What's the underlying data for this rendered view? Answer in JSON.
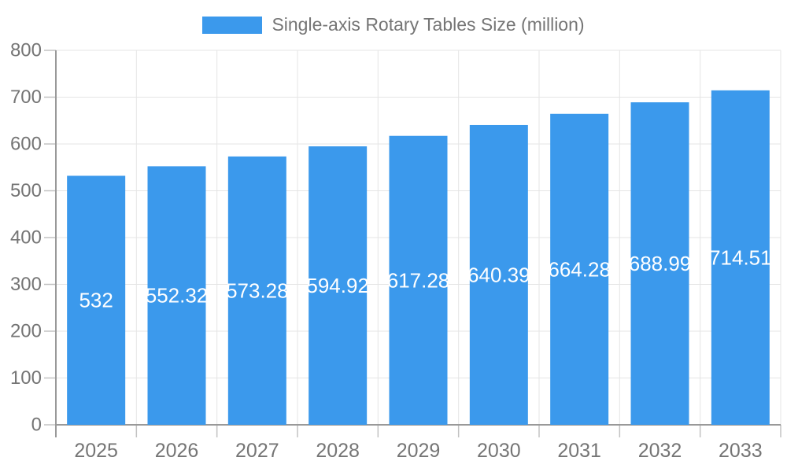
{
  "chart_data": {
    "type": "bar",
    "title": "Single-axis Rotary Tables Size (million)",
    "categories": [
      "2025",
      "2026",
      "2027",
      "2028",
      "2029",
      "2030",
      "2031",
      "2032",
      "2033"
    ],
    "series": [
      {
        "name": "Single-axis Rotary Tables Size (million)",
        "values": [
          532,
          552.32,
          573.28,
          594.92,
          617.28,
          640.39,
          664.28,
          688.99,
          714.51
        ],
        "labels": [
          "532",
          "552.32",
          "573.28",
          "594.92",
          "617.28",
          "640.39",
          "664.28",
          "688.99",
          "714.51"
        ],
        "color": "#3b99ec"
      }
    ],
    "xlabel": "",
    "ylabel": "",
    "ylim": [
      0,
      800
    ],
    "yticks": [
      0,
      100,
      200,
      300,
      400,
      500,
      600,
      700,
      800
    ],
    "grid": true,
    "legend_position": "top",
    "colors": {
      "bar": "#3b99ec",
      "axis": "#999999",
      "tick": "#c2c2c2",
      "grid": "#e5e5e5",
      "tick_label": "#757575",
      "value_label": "#ffffff",
      "background": "#ffffff"
    }
  }
}
